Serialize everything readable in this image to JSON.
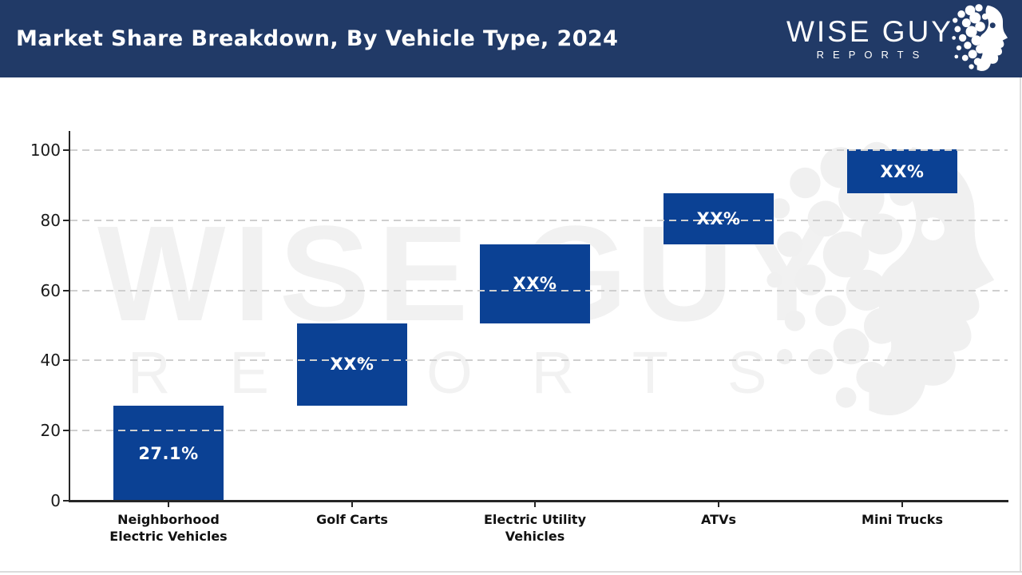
{
  "header": {
    "title": "Market Share Breakdown, By Vehicle Type, 2024",
    "logo": {
      "line1": "WISE GUY",
      "line2": "REPORTS"
    }
  },
  "watermark": {
    "line1": "WISE GUY",
    "line2": "REPORTS"
  },
  "colors": {
    "header_bg": "#213a67",
    "bar": "#0b4194",
    "grid": "#cfcfcf",
    "axis": "#262626",
    "bar_label_text": "#ffffff",
    "watermark_text": "#f1f1f1"
  },
  "chart_data": {
    "type": "bar",
    "variant": "waterfall",
    "title": "Market Share Breakdown, By Vehicle Type, 2024",
    "xlabel": "",
    "ylabel": "",
    "ylim": [
      0,
      100
    ],
    "yticks": [
      0,
      20,
      40,
      60,
      80,
      100
    ],
    "grid": "horizontal-dashed",
    "legend": "none",
    "categories": [
      {
        "slug": "neighborhood-electric-vehicles",
        "lines": [
          "Neighborhood",
          "Electric Vehicles"
        ]
      },
      {
        "slug": "golf-carts",
        "lines": [
          "Golf Carts"
        ]
      },
      {
        "slug": "electric-utility-vehicles",
        "lines": [
          "Electric Utility",
          "Vehicles"
        ]
      },
      {
        "slug": "atvs",
        "lines": [
          "ATVs"
        ]
      },
      {
        "slug": "mini-trucks",
        "lines": [
          "Mini Trucks"
        ]
      }
    ],
    "segments": [
      {
        "label": "27.1%",
        "start": 0,
        "end": 27.1
      },
      {
        "label": "XX%",
        "start": 27.1,
        "end": 50.6
      },
      {
        "label": "XX%",
        "start": 50.6,
        "end": 73.1
      },
      {
        "label": "XX%",
        "start": 73.1,
        "end": 87.7
      },
      {
        "label": "XX%",
        "start": 87.7,
        "end": 100.2
      }
    ]
  }
}
